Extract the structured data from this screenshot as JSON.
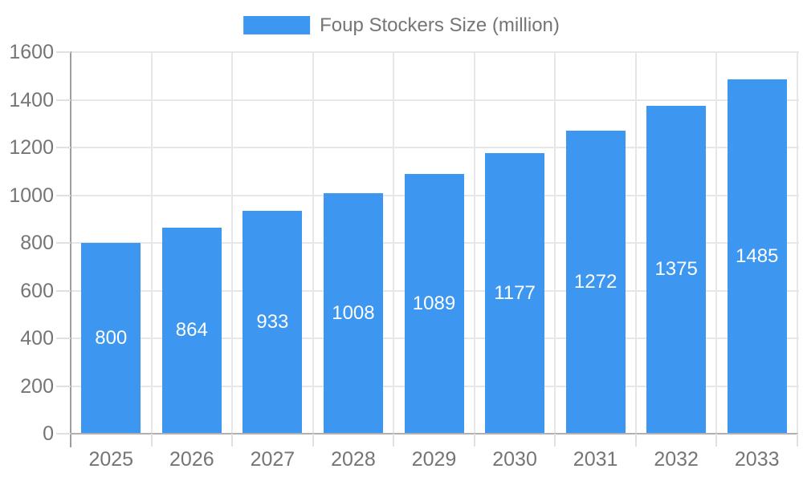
{
  "legend": {
    "label": "Foup Stockers Size (million)"
  },
  "colors": {
    "bar": "#3D97F0",
    "axis_text": "#757575",
    "value_label_text": "#FFFFFF",
    "gridline": "#E7E7E7",
    "tick": "#E0E0E0",
    "y_axis_line": "#9E9E9E",
    "x_axis_line": "#B0B0B0",
    "background": "#FFFFFF"
  },
  "chart_data": {
    "type": "bar",
    "title": "Foup Stockers Size (million)",
    "series_name": "Foup Stockers Size (million)",
    "categories": [
      "2025",
      "2026",
      "2027",
      "2028",
      "2029",
      "2030",
      "2031",
      "2032",
      "2033"
    ],
    "values": [
      800,
      864,
      933,
      1008,
      1089,
      1177,
      1272,
      1375,
      1485
    ],
    "xlabel": "",
    "ylabel": "",
    "ylim": [
      0,
      1600
    ],
    "ytick_step": 200,
    "yticks": [
      0,
      200,
      400,
      600,
      800,
      1000,
      1200,
      1400,
      1600
    ],
    "grid": true,
    "legend_position": "top-center",
    "value_labels_position": "inside-center"
  }
}
